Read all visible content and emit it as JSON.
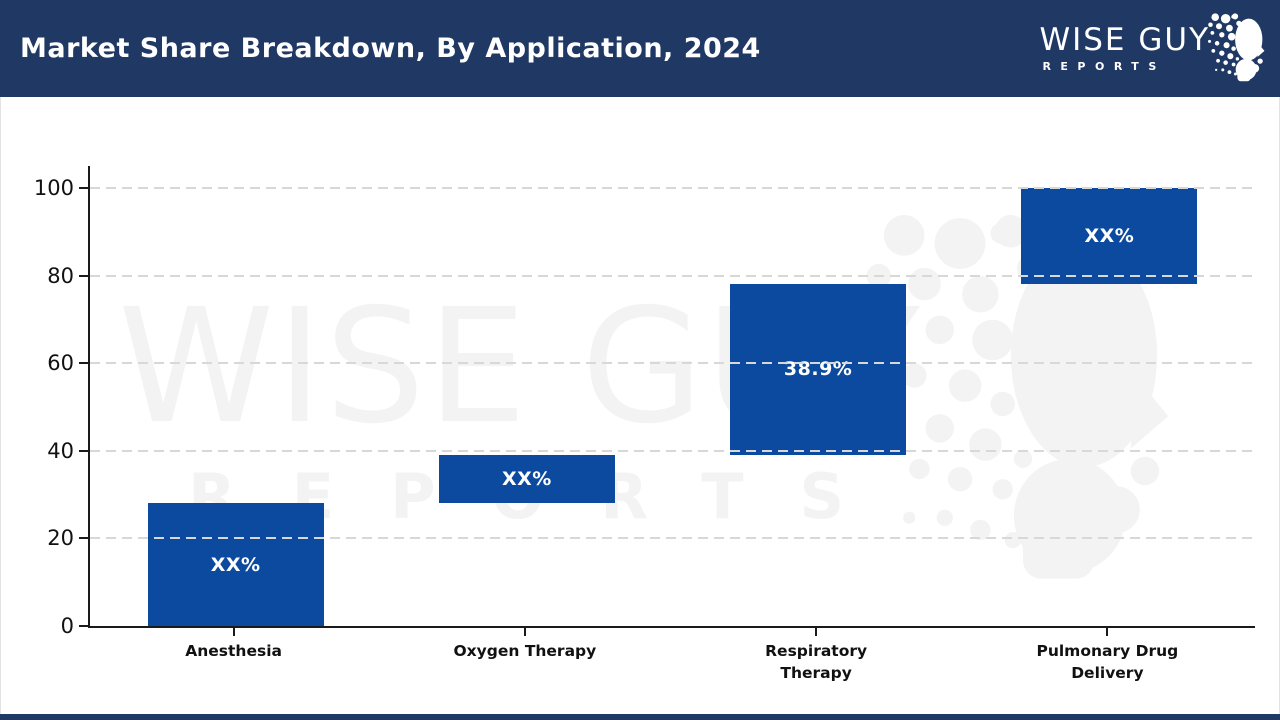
{
  "header": {
    "title": "Market Share Breakdown, By Application, 2024",
    "logo": {
      "wordmark": "WISE GUY",
      "subtext": "REPORTS"
    }
  },
  "watermark": {
    "wordmark": "WISE GUY",
    "subtext": "REPORTS"
  },
  "chart_data": {
    "type": "bar",
    "variant": "floating-segment-waterfall",
    "title": "Market Share Breakdown, By Application, 2024",
    "categories": [
      "Anesthesia",
      "Oxygen Therapy",
      "Respiratory Therapy",
      "Pulmonary Drug Delivery"
    ],
    "segments": [
      {
        "category": "Anesthesia",
        "start": 0,
        "end": 28.0,
        "span": 28.0,
        "value_label": "XX%"
      },
      {
        "category": "Oxygen Therapy",
        "start": 28.0,
        "end": 39.1,
        "span": 11.1,
        "value_label": "XX%"
      },
      {
        "category": "Respiratory Therapy",
        "start": 39.1,
        "end": 78.0,
        "span": 38.9,
        "value_label": "38.9%"
      },
      {
        "category": "Pulmonary Drug Delivery",
        "start": 78.0,
        "end": 100.0,
        "span": 22.0,
        "value_label": "XX%"
      }
    ],
    "yticks": [
      0,
      20,
      40,
      60,
      80,
      100
    ],
    "ylim": [
      0,
      105
    ],
    "xlabel": "",
    "ylabel": "",
    "grid": "horizontal-dashed-over-bars",
    "legend": "none",
    "colors": {
      "bar": "#0b4a9f",
      "grid": "#d8d8d8",
      "axis": "#1a1a1a",
      "bar_label": "#ffffff"
    }
  },
  "theme": {
    "header_bg": "#1f3864",
    "footer_bg": "#1f3864",
    "page_bg": "#ffffff",
    "watermark_color": "#f3f3f4"
  }
}
